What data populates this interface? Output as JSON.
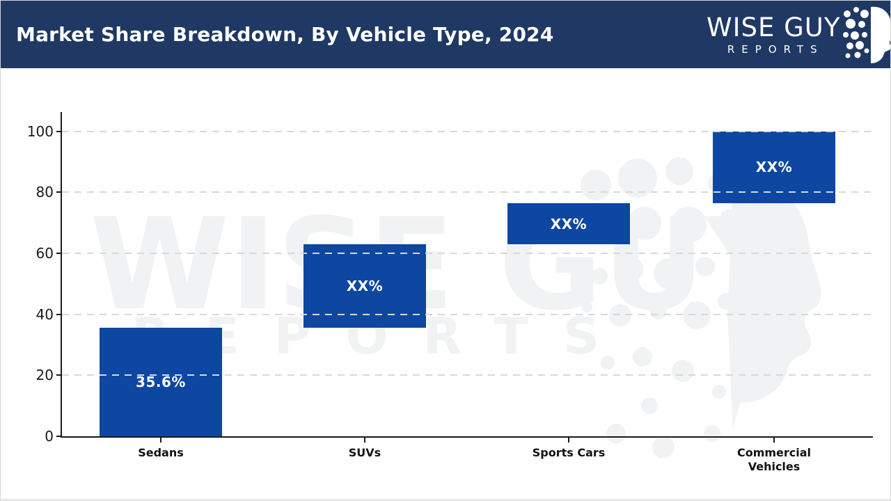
{
  "header": {
    "title": "Market Share Breakdown, By Vehicle Type, 2024",
    "brand": {
      "name": "WISE GUY",
      "tagline": "REPORTS"
    }
  },
  "watermark": {
    "line1": "WISE GUY",
    "line2": "REPORTS"
  },
  "chart_data": {
    "type": "bar",
    "subtype": "waterfall",
    "title": "Market Share Breakdown, By Vehicle Type, 2024",
    "categories": [
      "Sedans",
      "SUVs",
      "Sports Cars",
      "Commercial Vehicles"
    ],
    "segments": [
      {
        "category": "Sedans",
        "start": 0,
        "end": 35.6,
        "value": 35.6,
        "label": "35.6%"
      },
      {
        "category": "SUVs",
        "start": 35.6,
        "end": 62.9,
        "value": 27.3,
        "label": "XX%"
      },
      {
        "category": "Sports Cars",
        "start": 62.9,
        "end": 76.4,
        "value": 13.5,
        "label": "XX%"
      },
      {
        "category": "Commercial Vehicles",
        "start": 76.4,
        "end": 100,
        "value": 23.6,
        "label": "XX%"
      }
    ],
    "yticks": [
      0,
      20,
      40,
      60,
      80,
      100
    ],
    "ylim": [
      0,
      106
    ],
    "xlabel": "",
    "ylabel": "",
    "grid": "horizontal-dashed-over-bars",
    "legend": "none",
    "bar_color": "#0d47a1",
    "bar_label_color": "#ffffff"
  },
  "colors": {
    "header_bg": "#1f3864",
    "bar": "#0d47a1",
    "axis": "#1a1a1a",
    "grid": "#d8d8d8",
    "watermark": "#f1f2f4"
  }
}
